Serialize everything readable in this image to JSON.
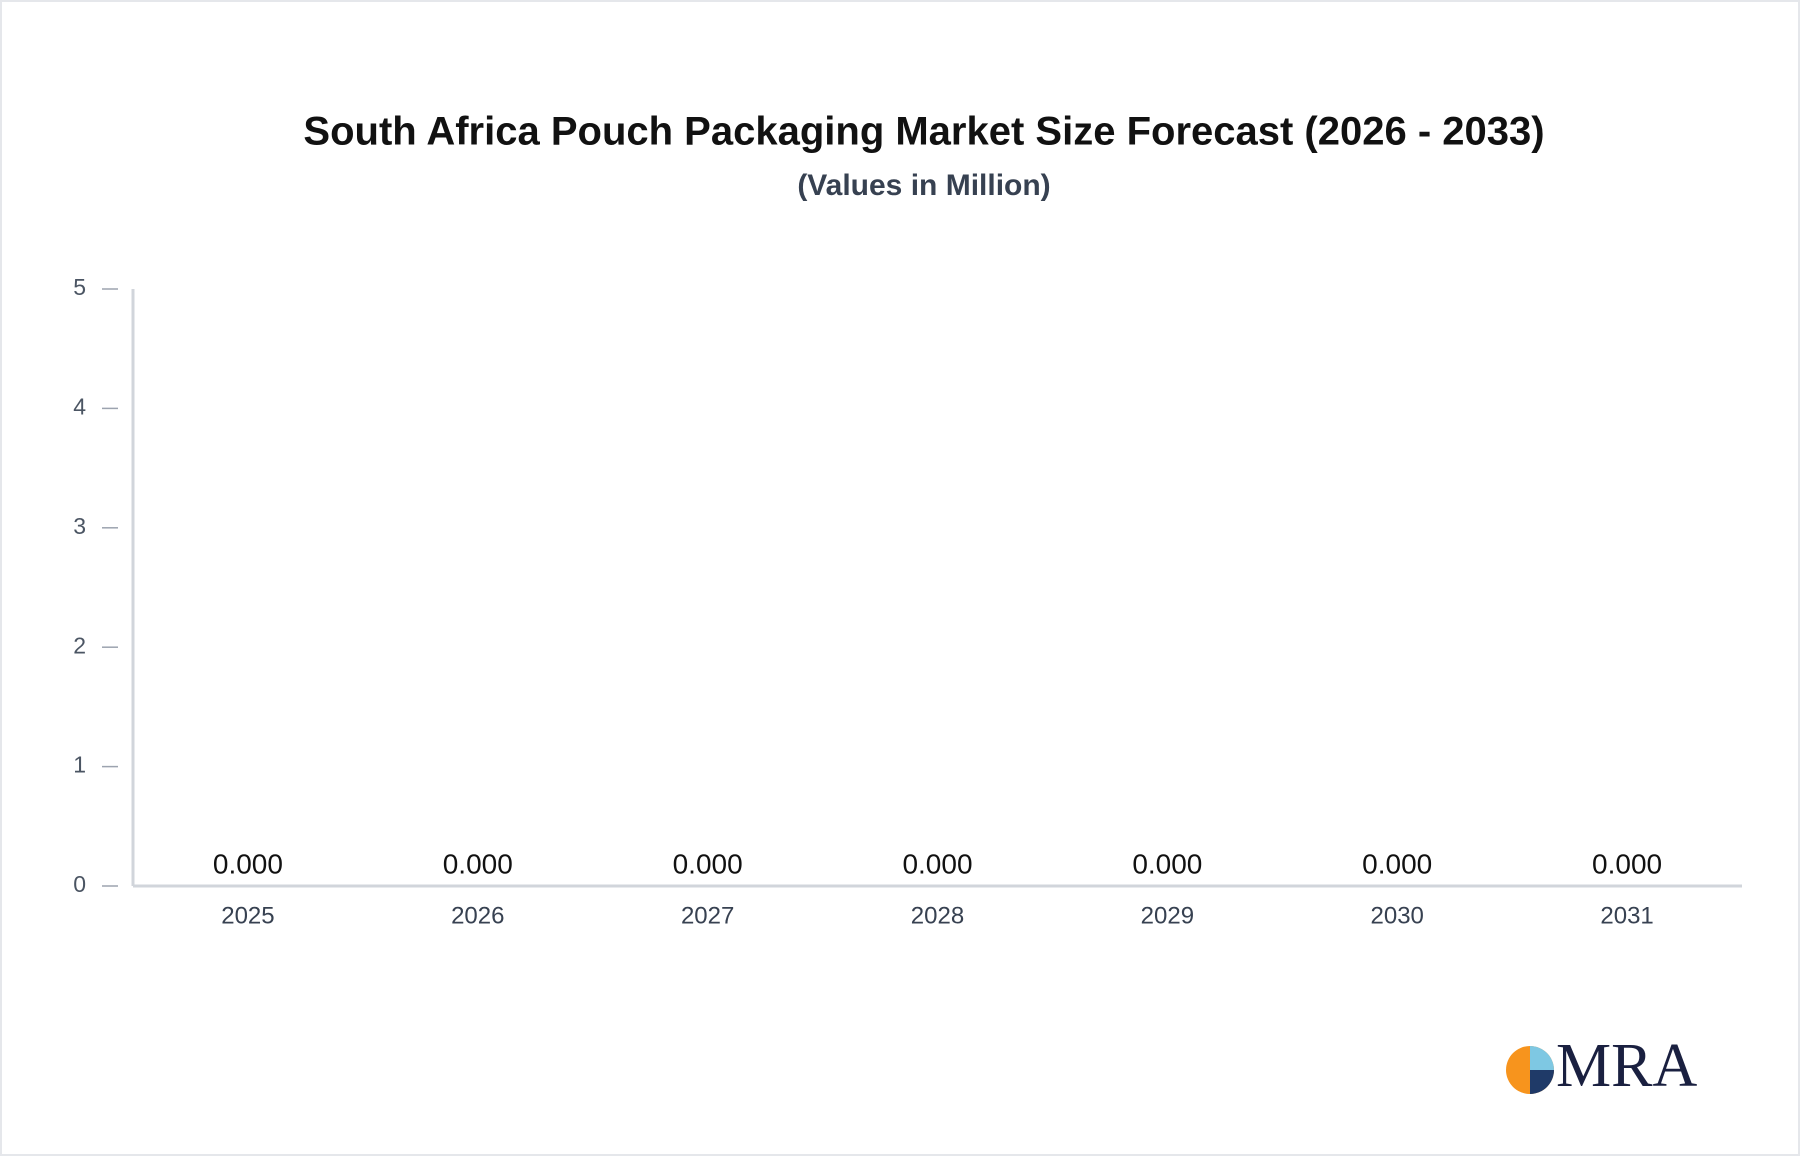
{
  "chart_data": {
    "type": "bar",
    "title": "South Africa Pouch Packaging Market Size Forecast (2026 - 2033)",
    "subtitle": "(Values in Million)",
    "categories": [
      "2025",
      "2026",
      "2027",
      "2028",
      "2029",
      "2030",
      "2031"
    ],
    "values": [
      0,
      0,
      0,
      0,
      0,
      0,
      0
    ],
    "value_labels": [
      "0.000",
      "0.000",
      "0.000",
      "0.000",
      "0.000",
      "0.000",
      "0.000"
    ],
    "color": "#e5e7eb",
    "ylim": [
      0,
      5
    ],
    "yticks": [
      0,
      1,
      2,
      3,
      4,
      5
    ],
    "grid": false
  },
  "logo": {
    "text": "MRA"
  }
}
